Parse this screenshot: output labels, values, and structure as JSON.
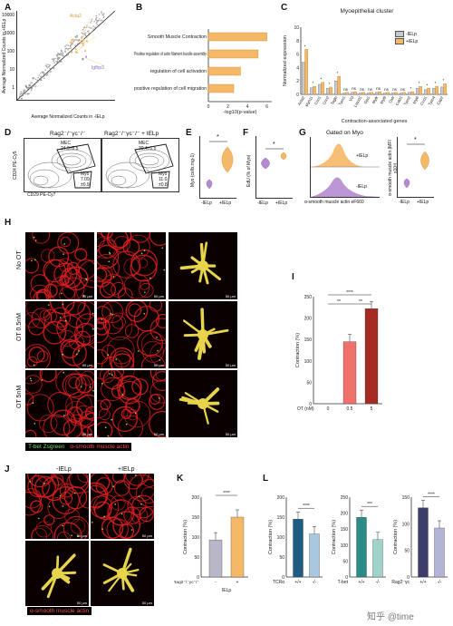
{
  "panels": {
    "A": {
      "letter": "A",
      "xlabel": "Average Normalized Counts in -IELp",
      "ylabel": "Average Normalized Counts in +IELp",
      "tick_y": [
        "10000",
        "1000",
        "100",
        "10",
        "1"
      ],
      "gene_up": "Acta2",
      "gene_dn": "Igfbp3"
    },
    "B": {
      "letter": "B",
      "xlabel": "-log10(p-value)",
      "terms": [
        "Smooth Muscle Contraction",
        "Positive regulation of actin filament bundle assembly",
        "regulation of cell activation",
        "positive regulation of cell migration"
      ],
      "values": [
        6.0,
        5.1,
        3.3,
        2.6
      ],
      "ticks": [
        "0",
        "2",
        "4",
        "6"
      ]
    },
    "C": {
      "letter": "C",
      "title": "Myoepithelial cluster",
      "ylabel": "Normalized expression",
      "xlabel": "Contraction-associated genes",
      "legend": [
        "-IELp",
        "+IELp"
      ],
      "genes": [
        "Acta2",
        "Myh11",
        "Cnn1",
        "Cnn2",
        "Tagln",
        "Tpm1",
        "Vcl",
        "Lmod1",
        "Gja1",
        "Mylk",
        "Myl9",
        "Oxtr",
        "Cald1",
        "Tpm2",
        "Myl6",
        "Cxcl1",
        "Tpm4",
        "Cap2"
      ],
      "minus": [
        4.8,
        1.0,
        1.5,
        0.9,
        2.0,
        0.2,
        0.3,
        0.2,
        0.2,
        0.3,
        0.2,
        0.2,
        0.2,
        0.3,
        0.9,
        0.7,
        0.9,
        1.1
      ],
      "plus": [
        6.7,
        1.2,
        1.8,
        1.1,
        2.7,
        0.3,
        0.4,
        0.3,
        0.3,
        0.4,
        0.3,
        0.3,
        0.3,
        0.4,
        1.2,
        0.9,
        1.2,
        1.6
      ],
      "ticks": [
        "0",
        "2",
        "4",
        "6",
        "8",
        "10"
      ],
      "sig": [
        "*",
        "*",
        "*",
        "*",
        "*",
        "ns",
        "ns",
        "ns",
        "ns",
        "ns",
        "ns",
        "ns",
        "ns",
        "*",
        "*",
        "*",
        "*",
        "*"
      ]
    },
    "D": {
      "letter": "D",
      "left_title": "Rag2⁻/⁻γc⁻/⁻",
      "right_title": "Rag2⁻/⁻γc⁻/⁻ + IELp",
      "left_mec": "MEC\n24.9±5.5",
      "right_mec": "MEC\n30.4±1.5",
      "left_myo": "Myo\n7.09\n±0.9",
      "right_myo": "Myo\n11.0\n±0.8",
      "ylabel": "CD24 PE-Cy5",
      "xlabel": "CD29 PE-Cy7"
    },
    "E": {
      "letter": "E",
      "ylabel": "Myo (cells.mg-1)",
      "groups": [
        "-IELp",
        "+IELp"
      ],
      "sig": "*"
    },
    "F": {
      "letter": "F",
      "ylabel": "EdU (% of Myo)",
      "groups": [
        "-IELp",
        "+IELp"
      ],
      "sig": "*"
    },
    "G": {
      "letter": "G",
      "title": "Gated on Myo",
      "legend_plus": "+IELp",
      "legend_minus": "-IELp",
      "xlabel": "α-smooth muscle actin eF660",
      "ylabel": "α-smooth muscle actin (MFI x10³)",
      "groups": [
        "-IELp",
        "+IELp"
      ],
      "sig": "*"
    },
    "H": {
      "letter": "H",
      "rows": [
        "No OT",
        "OT 0.5nM",
        "OT 5nM"
      ],
      "legend_green": "T-bet Zsgreen",
      "legend_red": "α-smooth muscle actin",
      "scale": "50 µm"
    },
    "I": {
      "letter": "I",
      "ylabel": "Contraction (%)",
      "xlabel": "OT (nM)",
      "cats": [
        "0",
        "0.5",
        "5"
      ],
      "values": [
        0,
        145,
        222
      ],
      "ticks": [
        "0",
        "50",
        "100",
        "150",
        "200",
        "250"
      ],
      "sig": [
        "****",
        "**",
        "**"
      ]
    },
    "J": {
      "letter": "J",
      "left": "-IELp",
      "right": "+IELp",
      "legend_red": "α-smooth muscle actin",
      "scale": "50 µm"
    },
    "K": {
      "letter": "K",
      "ylabel": "Contraction (%)",
      "row1_label": "Rag2⁻/⁻γc⁻/⁻",
      "row1": [
        "-",
        "+"
      ],
      "row2": "IELp",
      "values": [
        93,
        150
      ],
      "ticks": [
        "0",
        "50",
        "100",
        "150",
        "200"
      ],
      "sig": "****"
    },
    "L": {
      "letter": "L",
      "ylabel": "Contraction (%)",
      "charts": [
        {
          "gene": "TCRα",
          "cats": [
            "+/+",
            "-/-"
          ],
          "values": [
            145,
            108
          ],
          "ticks": [
            "0",
            "50",
            "100",
            "150",
            "200"
          ],
          "sig": "****",
          "colors": [
            "#1f5c82",
            "#a9c8e0"
          ]
        },
        {
          "gene": "T-bet",
          "cats": [
            "+/+",
            "-/-"
          ],
          "values": [
            187,
            117
          ],
          "ticks": [
            "0",
            "50",
            "100",
            "150",
            "200",
            "250"
          ],
          "sig": "***",
          "colors": [
            "#2b8c87",
            "#9fd2c9"
          ]
        },
        {
          "gene": "Rag2⁻γc",
          "cats": [
            "+/+",
            "-/-"
          ],
          "values": [
            130,
            92
          ],
          "ticks": [
            "0",
            "50",
            "100",
            "150"
          ],
          "sig": "****",
          "colors": [
            "#3d3d6b",
            "#b4b4d6"
          ]
        }
      ]
    }
  },
  "watermark": "知乎 @time",
  "colors": {
    "orange": "#f5b866",
    "grey": "#c8c8d0",
    "red": "#c93530",
    "pink": "#f0706a",
    "darkred": "#a52a22",
    "purple": "#b58ad0",
    "yellow": "#e9d34a"
  }
}
